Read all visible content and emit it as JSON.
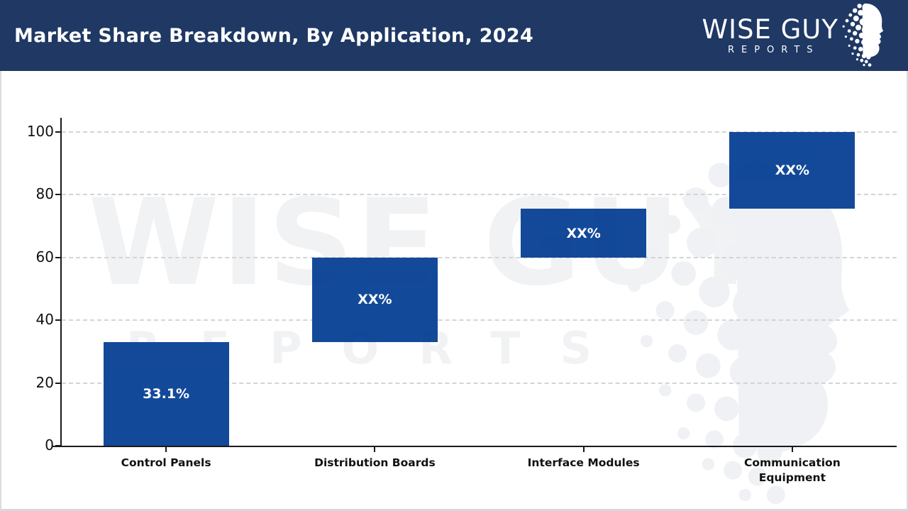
{
  "header": {
    "title": "Market Share Breakdown, By Application, 2024",
    "bg_color": "#1f3864",
    "logo": {
      "line1": "WISE GUY",
      "line2": "REPORTS"
    }
  },
  "watermark": {
    "line1": "WISE GUY",
    "line2": "REPORTS"
  },
  "chart_data": {
    "type": "bar",
    "subtype": "waterfall-floating-bars",
    "title": "Market Share Breakdown, By Application, 2024",
    "categories": [
      "Control Panels",
      "Distribution Boards",
      "Interface Modules",
      "Communication Equipment"
    ],
    "segments": [
      {
        "category": "Control Panels",
        "start": 0,
        "end": 33.1,
        "label": "33.1%"
      },
      {
        "category": "Distribution Boards",
        "start": 33.1,
        "end": 60,
        "label": "XX%"
      },
      {
        "category": "Interface Modules",
        "start": 60,
        "end": 75.5,
        "label": "XX%"
      },
      {
        "category": "Communication Equipment",
        "start": 75.5,
        "end": 100,
        "label": "XX%"
      }
    ],
    "xlabel": "",
    "ylabel": "",
    "ylim": [
      0,
      100
    ],
    "yticks": [
      0,
      20,
      40,
      60,
      80,
      100
    ],
    "grid": "horizontal dashed",
    "legend": "none",
    "bar_color": "#0a4295",
    "bar_label_color": "#ffffff"
  }
}
